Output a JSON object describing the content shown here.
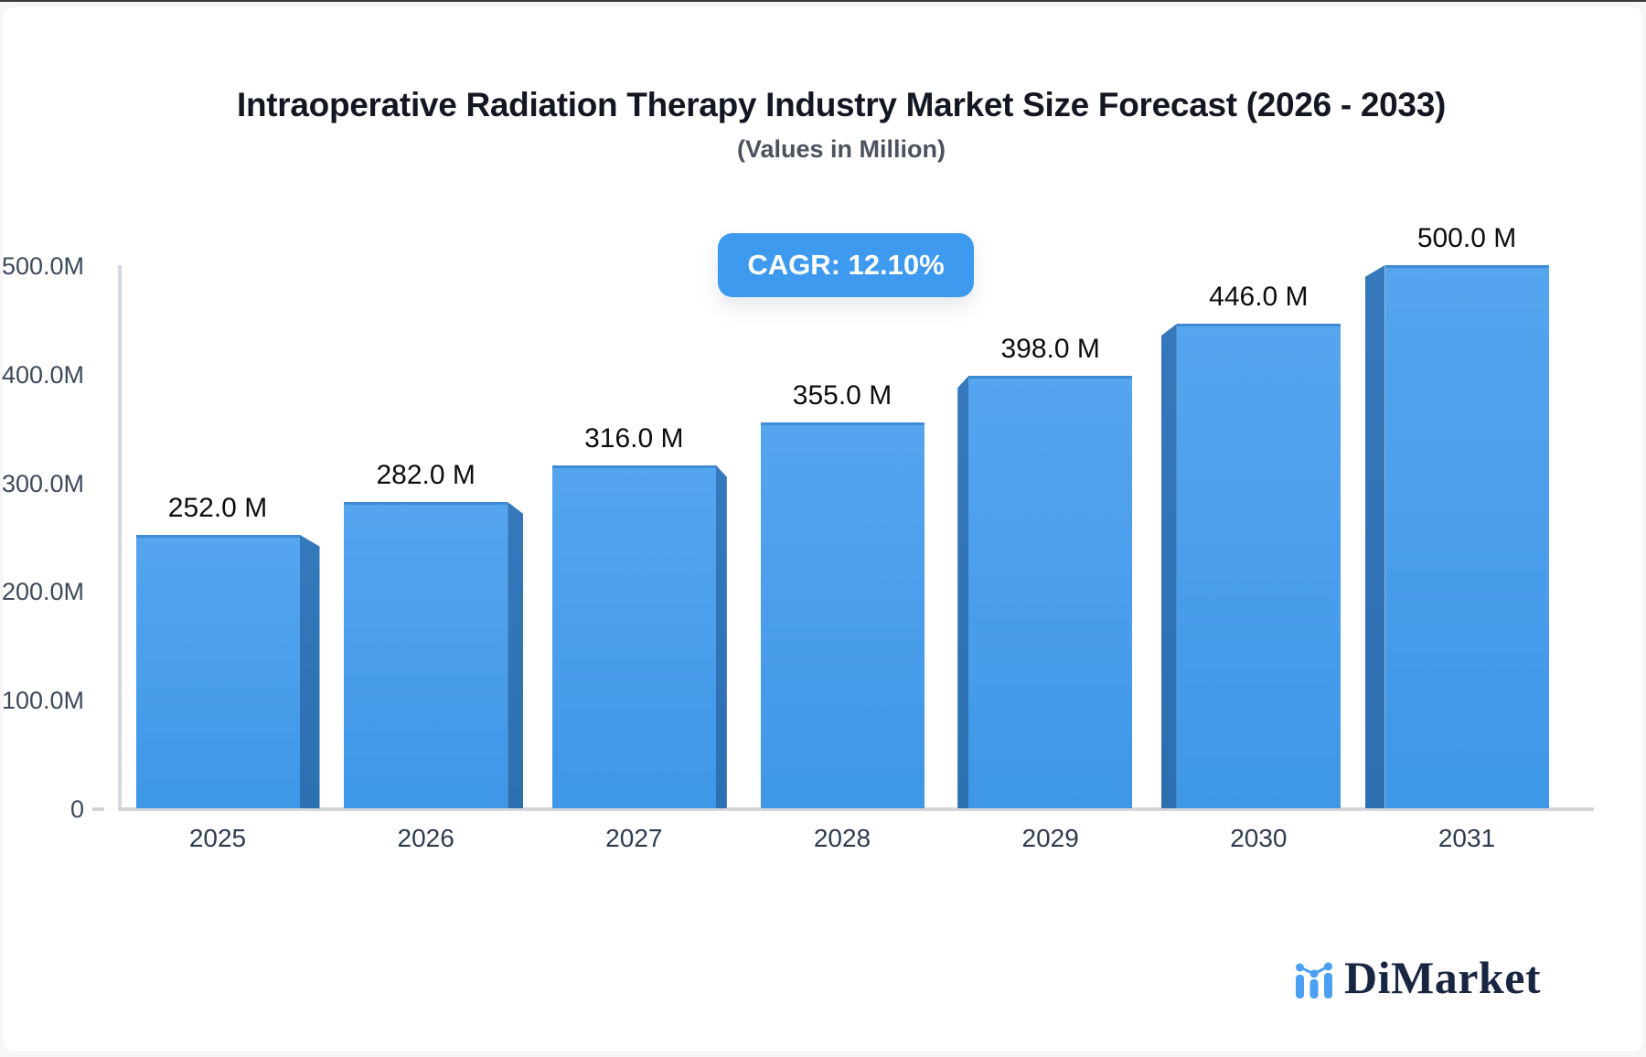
{
  "header": {
    "title": "Intraoperative Radiation Therapy Industry Market Size Forecast (2026 - 2033)",
    "subtitle": "(Values in Million)",
    "cagr_badge": "CAGR: 12.10%"
  },
  "brand": {
    "name": "DiMarket",
    "icon": "bar-line-chart-icon"
  },
  "chart_data": {
    "type": "bar",
    "title": "Intraoperative Radiation Therapy Industry Market Size Forecast (2026 - 2033)",
    "subtitle": "(Values in Million)",
    "cagr_pct": 12.1,
    "categories": [
      "2025",
      "2026",
      "2027",
      "2028",
      "2029",
      "2030",
      "2031"
    ],
    "values": [
      252.0,
      282.0,
      316.0,
      355.0,
      398.0,
      446.0,
      500.0
    ],
    "value_labels": [
      "252.0 M",
      "282.0 M",
      "316.0 M",
      "355.0 M",
      "398.0 M",
      "446.0 M",
      "500.0 M"
    ],
    "unit": "M",
    "y_axis": {
      "min": 0,
      "max": 500,
      "ticks": [
        {
          "label": "0",
          "value": 0
        },
        {
          "label": "100.0M",
          "value": 100
        },
        {
          "label": "200.0M",
          "value": 200
        },
        {
          "label": "300.0M",
          "value": 300
        },
        {
          "label": "400.0M",
          "value": 400
        },
        {
          "label": "500.0M",
          "value": 500
        }
      ]
    },
    "grid": false,
    "legend": false,
    "style": "3d-bevel-bars"
  },
  "colors": {
    "bar_top": "#55A5EF",
    "bar_bottom": "#3F97E8",
    "bar_edge": "#3E8BD3",
    "bar_side_top": "#3579BC",
    "bar_side_bottom": "#2C70B0",
    "badge_bg": "#3E9AEE",
    "badge_text": "#FFFFFF",
    "axis_line": "#D5D8DC",
    "tick_text": "#3D4A5C",
    "x_label_text": "#2E3B4E",
    "value_label_text": "#0C0D0F",
    "title_text": "#131722",
    "subtitle_text": "#4B525E",
    "brand_text": "#182642",
    "brand_blue": "#4BA0F2",
    "page_bg": "#F6F6F7",
    "card_bg": "#FFFFFF",
    "top_line": "#3A3A3C"
  }
}
